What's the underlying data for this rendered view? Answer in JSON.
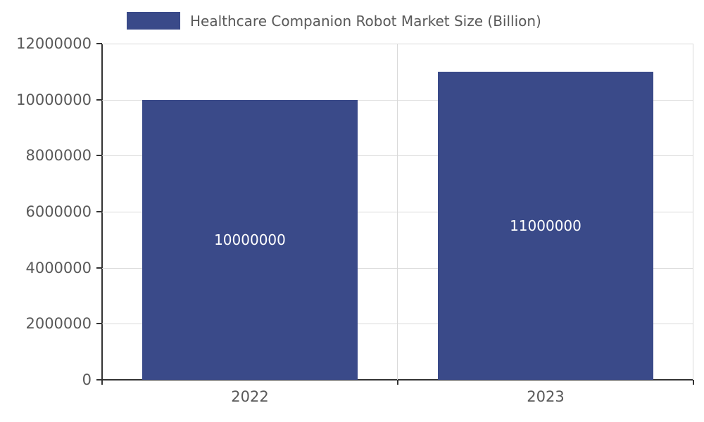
{
  "chart_data": {
    "type": "bar",
    "title": "Healthcare Companion Robot Market Size (Billion)",
    "categories": [
      "2022",
      "2023"
    ],
    "series": [
      {
        "name": "Healthcare Companion Robot Market Size (Billion)",
        "values": [
          10000000,
          11000000
        ]
      }
    ],
    "data_labels": [
      "10000000",
      "11000000"
    ],
    "xlabel": "",
    "ylabel": "",
    "ylim": [
      0,
      12000000
    ],
    "yticks": [
      0,
      2000000,
      4000000,
      6000000,
      8000000,
      10000000,
      12000000
    ],
    "ytick_labels": [
      "0",
      "2000000",
      "4000000",
      "6000000",
      "8000000",
      "10000000",
      "12000000"
    ],
    "grid": true,
    "legend_position": "top-left"
  },
  "legend": {
    "label": "Healthcare Companion Robot Market Size (Billion)"
  },
  "colors": {
    "bar": "#3A4A89",
    "grid": "#D9D9D9",
    "axis": "#333333",
    "tick_text": "#595959",
    "bar_label_text": "#FFFFFF",
    "background": "#FFFFFF"
  }
}
